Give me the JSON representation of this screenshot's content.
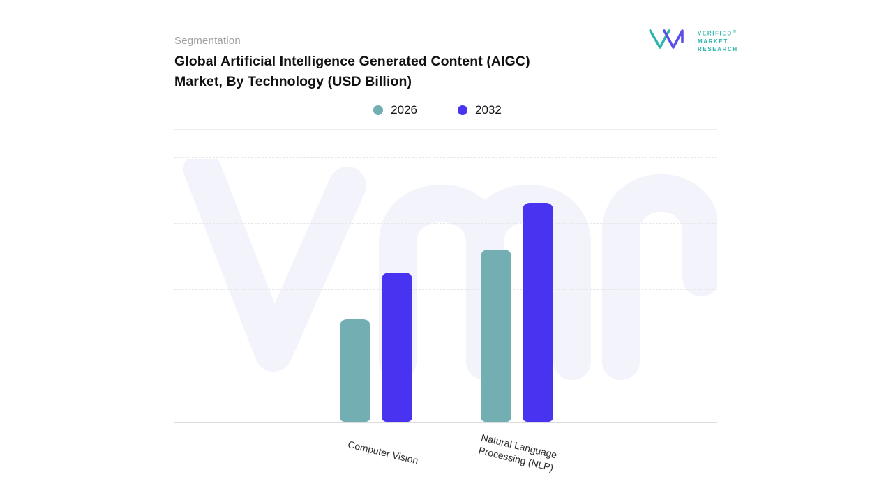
{
  "header": {
    "eyebrow": "Segmentation",
    "title_lines": [
      "Global Artificial Intelligence Generated Content (AIGC)",
      "Market, By Technology (USD Billion)"
    ]
  },
  "brand": {
    "lines": [
      "VERIFIED",
      "MARKET",
      "RESEARCH"
    ],
    "registered": "®",
    "teal": "#2FB5AD",
    "indigo": "#5A50E8"
  },
  "theme": {
    "background": "#FFFFFF",
    "watermark_color": "#F2F3FB",
    "grid_color": "#E7E7E7",
    "axis_line_color": "#DCDCDC",
    "title_color": "#111111",
    "eyebrow_color": "#9E9E9E"
  },
  "chart_data": {
    "type": "bar",
    "title": "Global Artificial Intelligence Generated Content (AIGC) Market, By Technology (USD Billion)",
    "categories": [
      "Computer Vision",
      "Natural Language Processing (NLP)"
    ],
    "category_label_lines": [
      [
        "Computer Vision"
      ],
      [
        "Natural Language",
        "Processing (NLP)"
      ]
    ],
    "series": [
      {
        "name": "2026",
        "color": "#72AEB2",
        "values": [
          15.5,
          26
        ]
      },
      {
        "name": "2032",
        "color": "#4733F0",
        "values": [
          22.5,
          33
        ]
      }
    ],
    "xlabel": "",
    "ylabel": "USD Billion",
    "ylim": [
      0,
      40
    ],
    "grid": "horizontal-dashed",
    "legend_position": "top-center",
    "value_labels_shown": false
  }
}
